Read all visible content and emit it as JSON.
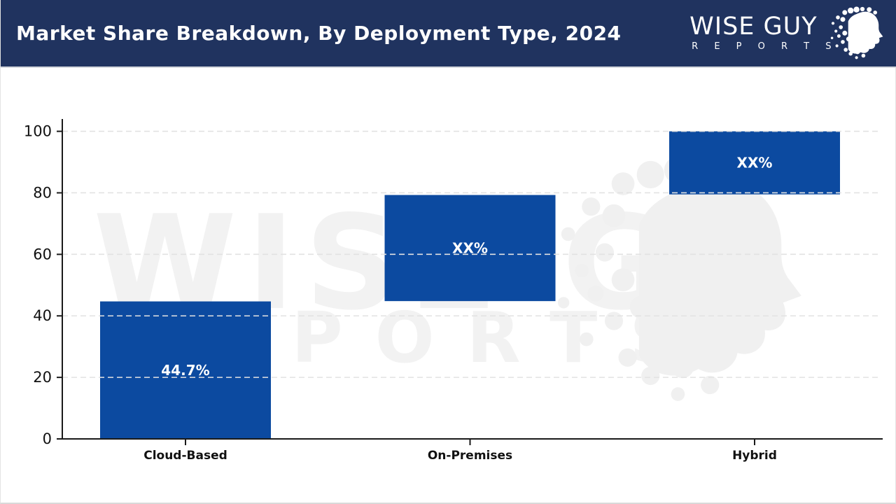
{
  "header": {
    "title": "Market Share Breakdown, By Deployment Type, 2024",
    "bg_color": "#20335F",
    "logo": {
      "line1": "WISE GUY",
      "line2": "R E P O R T S"
    }
  },
  "watermark": {
    "line1": "WISE GU",
    "line2": "REPORTS"
  },
  "chart_data": {
    "type": "bar",
    "subtype": "floating-waterfall",
    "title": "Market Share Breakdown, By Deployment Type, 2024",
    "categories": [
      "Cloud-Based",
      "On-Premises",
      "Hybrid"
    ],
    "segments": [
      {
        "category": "Cloud-Based",
        "start": 0,
        "end": 44.7,
        "label": "44.7%"
      },
      {
        "category": "On-Premises",
        "start": 44.8,
        "end": 79.3,
        "label": "XX%"
      },
      {
        "category": "Hybrid",
        "start": 79.5,
        "end": 100,
        "label": "XX%"
      }
    ],
    "xlabel": "",
    "ylabel": "",
    "yticks": [
      0,
      20,
      40,
      60,
      80,
      100
    ],
    "ylim": [
      0,
      105
    ],
    "grid": "horizontal-dashed",
    "legend": "none",
    "bar_color": "#0C4AA0",
    "bar_label_color": "#FFFFFF",
    "axis_color": "#1A1A1A"
  }
}
